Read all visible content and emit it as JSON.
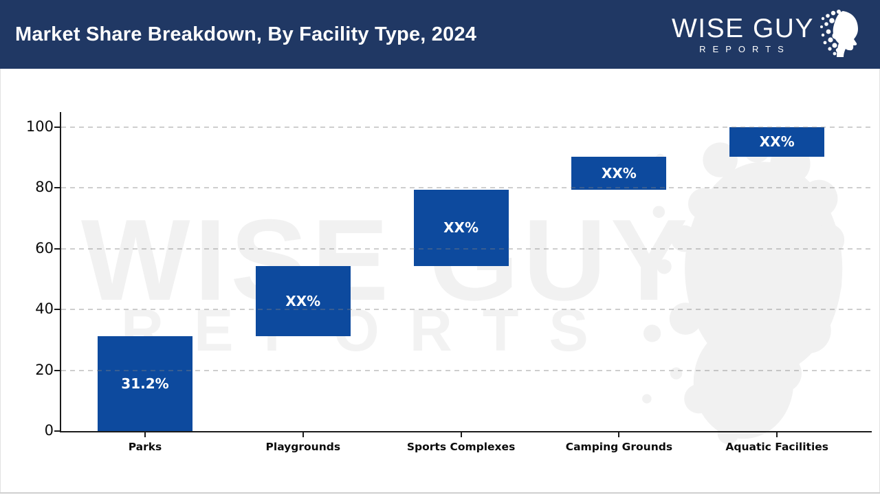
{
  "header": {
    "title": "Market Share Breakdown, By Facility Type, 2024",
    "logo": {
      "line1": "WISE GUY",
      "line2": "REPORTS"
    }
  },
  "watermark": {
    "line1": "WISE GUY",
    "line2": "REPORTS"
  },
  "colors": {
    "header_bg": "#203864",
    "bar": "#0d4a9e",
    "bar_label": "#ffffff",
    "axis": "#1a1a1a",
    "gridline": "#d9d9d9",
    "watermark": "#f1f1f1"
  },
  "chart_data": {
    "type": "bar",
    "subtype": "waterfall",
    "title": "Market Share Breakdown, By Facility Type, 2024",
    "xlabel": "",
    "ylabel": "",
    "ylim": [
      0,
      105
    ],
    "yticks": [
      0,
      20,
      40,
      60,
      80,
      100
    ],
    "grid": "horizontal-dashed-over-bars",
    "legend": "none",
    "categories": [
      "Parks",
      "Playgrounds",
      "Sports Complexes",
      "Camping Grounds",
      "Aquatic Facilities"
    ],
    "bars": [
      {
        "category": "Parks",
        "start": 0,
        "end": 31.2,
        "label": "31.2%"
      },
      {
        "category": "Playgrounds",
        "start": 31.2,
        "end": 54.4,
        "label": "XX%"
      },
      {
        "category": "Sports Complexes",
        "start": 54.4,
        "end": 79.4,
        "label": "XX%"
      },
      {
        "category": "Camping Grounds",
        "start": 79.4,
        "end": 90.3,
        "label": "XX%"
      },
      {
        "category": "Aquatic Facilities",
        "start": 90.3,
        "end": 100,
        "label": "XX%"
      }
    ]
  }
}
